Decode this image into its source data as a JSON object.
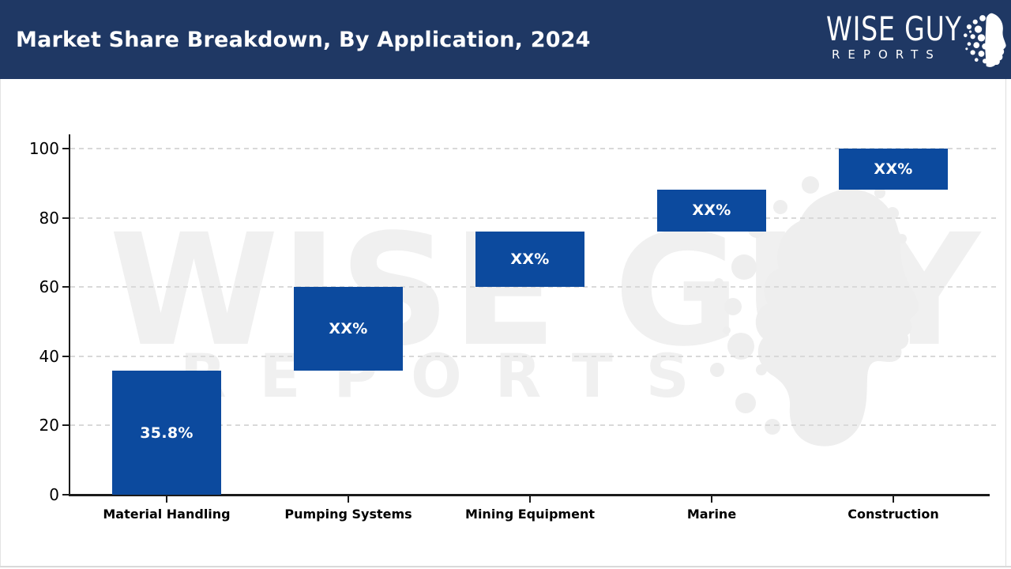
{
  "header": {
    "title": "Market Share Breakdown, By Application, 2024",
    "logo": {
      "line1": "WISE GUY",
      "line2": "REPORTS"
    }
  },
  "watermark": {
    "line1": "WISE GUY",
    "line2": "REPORTS"
  },
  "colors": {
    "header_bg": "#1f3864",
    "bar": "#0c4a9e",
    "bar_label": "#ffffff",
    "grid": "#d9d9d9",
    "axis": "#1a1a1a",
    "watermark": "#f0f0f0"
  },
  "chart_data": {
    "type": "bar",
    "subtype": "waterfall",
    "title": "Market Share Breakdown, By Application, 2024",
    "categories": [
      "Material Handling",
      "Pumping Systems",
      "Mining Equipment",
      "Marine",
      "Construction"
    ],
    "segments": [
      {
        "category": "Material Handling",
        "start": 0,
        "end": 35.8,
        "label": "35.8%"
      },
      {
        "category": "Pumping Systems",
        "start": 35.8,
        "end": 60.0,
        "label": "XX%"
      },
      {
        "category": "Mining Equipment",
        "start": 60.0,
        "end": 76.0,
        "label": "XX%"
      },
      {
        "category": "Marine",
        "start": 76.0,
        "end": 88.2,
        "label": "XX%"
      },
      {
        "category": "Construction",
        "start": 88.2,
        "end": 100.0,
        "label": "XX%"
      }
    ],
    "xlabel": "",
    "ylabel": "",
    "ylim": [
      0,
      104
    ],
    "yticks": [
      0,
      20,
      40,
      60,
      80,
      100
    ],
    "grid": true,
    "legend": false
  }
}
